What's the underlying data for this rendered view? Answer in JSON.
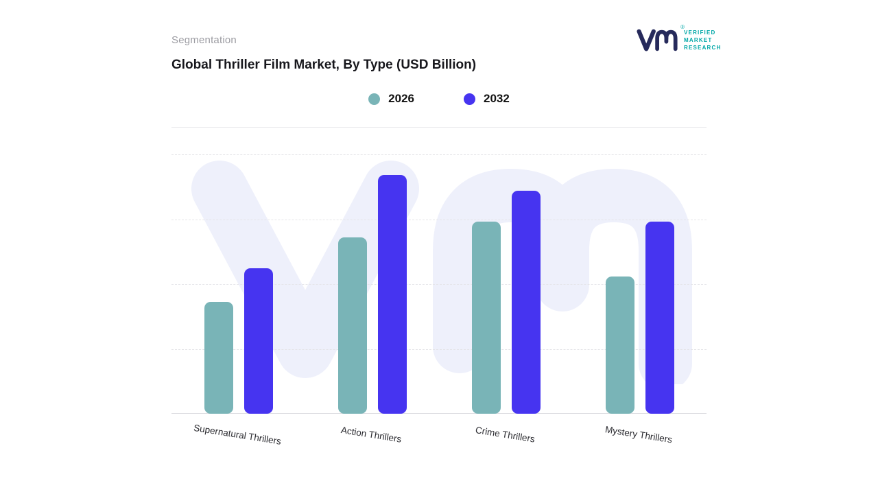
{
  "header": {
    "eyebrow": "Segmentation",
    "title": "Global Thriller Film Market, By Type (USD Billion)"
  },
  "logo": {
    "registered_mark": "®",
    "brand_lines": [
      "VERIFIED",
      "MARKET",
      "RESEARCH"
    ],
    "navy": "#262a5b",
    "teal": "#00a7a7"
  },
  "legend": [
    {
      "label": "2026",
      "color": "#79b4b7"
    },
    {
      "label": "2032",
      "color": "#4634f0"
    }
  ],
  "chart_data": {
    "type": "bar",
    "title": "Global Thriller Film Market, By Type (USD Billion)",
    "categories": [
      "Supernatural Thrillers",
      "Action Thrillers",
      "Crime Thrillers",
      "Mystery Thrillers"
    ],
    "series": [
      {
        "name": "2026",
        "color": "#79b4b7",
        "values": [
          43,
          68,
          74,
          53
        ]
      },
      {
        "name": "2032",
        "color": "#4634f0",
        "values": [
          56,
          92,
          86,
          74
        ]
      }
    ],
    "xlabel": "",
    "ylabel": "",
    "ylim": [
      0,
      100
    ],
    "value_axis_hidden": true,
    "grid": "horizontal-dashed",
    "legend_position": "top-center",
    "watermark": "VM monogram, light lavender, behind bars"
  }
}
